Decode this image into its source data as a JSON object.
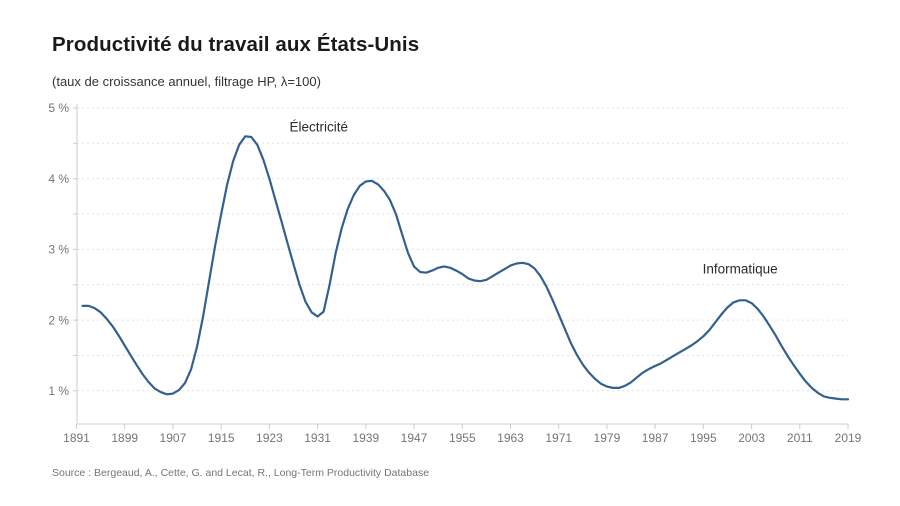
{
  "header": {
    "title": "Productivité du travail aux États-Unis",
    "subtitle": "(taux de croissance annuel, filtrage HP, λ=100)"
  },
  "footer": {
    "source": "Source : Bergeaud, A., Cette, G. and Lecat, R., Long-Term Productivity Database"
  },
  "colors": {
    "line": "#33618e",
    "grid": "#e2e2e2",
    "axis": "#cccccc",
    "tick_text": "#757575",
    "title_text": "#1a1a1a",
    "subtitle_text": "#333333",
    "source_text": "#757575",
    "annotation_text": "#2b2b2b",
    "background": "#ffffff"
  },
  "chart_data": {
    "type": "line",
    "title": "Productivité du travail aux États-Unis",
    "subtitle": "(taux de croissance annuel, filtrage HP, λ=100)",
    "unit": "%",
    "xlabel": "",
    "ylabel": "",
    "xlim": [
      1891,
      2019
    ],
    "ylim": [
      0.53,
      5.0
    ],
    "xticks": [
      1891,
      1899,
      1907,
      1915,
      1923,
      1931,
      1939,
      1947,
      1955,
      1963,
      1971,
      1979,
      1987,
      1995,
      2003,
      2011,
      2019
    ],
    "yticks": [
      {
        "value": 5,
        "label": "5 %"
      },
      {
        "value": 4,
        "label": "4 %"
      },
      {
        "value": 3,
        "label": "3 %"
      },
      {
        "value": 2,
        "label": "2 %"
      },
      {
        "value": 1,
        "label": "1 %"
      }
    ],
    "grid": {
      "orientation": "horizontal",
      "every": 0.5,
      "from": 1.0,
      "to": 5.0,
      "style": "dashed"
    },
    "legend": "none",
    "annotations": [
      {
        "text": "Électricité",
        "year": 1931.2,
        "value": 4.67
      },
      {
        "text": "Informatique",
        "year": 2001.1,
        "value": 2.66
      }
    ],
    "series": [
      {
        "name": "Productivité du travail, États-Unis (taux de croissance annuel, filtrage HP λ=100)",
        "years": [
          1892,
          1893,
          1894,
          1895,
          1896,
          1897,
          1898,
          1899,
          1900,
          1901,
          1902,
          1903,
          1904,
          1905,
          1906,
          1907,
          1908,
          1909,
          1910,
          1911,
          1912,
          1913,
          1914,
          1915,
          1916,
          1917,
          1918,
          1919,
          1920,
          1921,
          1922,
          1923,
          1924,
          1925,
          1926,
          1927,
          1928,
          1929,
          1930,
          1931,
          1932,
          1933,
          1934,
          1935,
          1936,
          1937,
          1938,
          1939,
          1940,
          1941,
          1942,
          1943,
          1944,
          1945,
          1946,
          1947,
          1948,
          1949,
          1950,
          1951,
          1952,
          1953,
          1954,
          1955,
          1956,
          1957,
          1958,
          1959,
          1960,
          1961,
          1962,
          1963,
          1964,
          1965,
          1966,
          1967,
          1968,
          1969,
          1970,
          1971,
          1972,
          1973,
          1974,
          1975,
          1976,
          1977,
          1978,
          1979,
          1980,
          1981,
          1982,
          1983,
          1984,
          1985,
          1986,
          1987,
          1988,
          1989,
          1990,
          1991,
          1992,
          1993,
          1994,
          1995,
          1996,
          1997,
          1998,
          1999,
          2000,
          2001,
          2002,
          2003,
          2004,
          2005,
          2006,
          2007,
          2008,
          2009,
          2010,
          2011,
          2012,
          2013,
          2014,
          2015,
          2016,
          2017,
          2018,
          2019
        ],
        "values": [
          2.2,
          2.2,
          2.17,
          2.11,
          2.02,
          1.91,
          1.78,
          1.64,
          1.5,
          1.36,
          1.23,
          1.12,
          1.03,
          0.98,
          0.95,
          0.96,
          1.01,
          1.11,
          1.3,
          1.62,
          2.05,
          2.55,
          3.05,
          3.5,
          3.92,
          4.25,
          4.48,
          4.6,
          4.59,
          4.48,
          4.27,
          4.0,
          3.7,
          3.4,
          3.09,
          2.79,
          2.5,
          2.26,
          2.11,
          2.05,
          2.12,
          2.5,
          2.95,
          3.3,
          3.57,
          3.77,
          3.9,
          3.96,
          3.97,
          3.92,
          3.83,
          3.7,
          3.5,
          3.22,
          2.95,
          2.76,
          2.68,
          2.67,
          2.7,
          2.74,
          2.76,
          2.74,
          2.7,
          2.65,
          2.59,
          2.56,
          2.55,
          2.57,
          2.62,
          2.67,
          2.72,
          2.77,
          2.8,
          2.81,
          2.79,
          2.73,
          2.62,
          2.47,
          2.28,
          2.08,
          1.88,
          1.68,
          1.51,
          1.37,
          1.26,
          1.17,
          1.1,
          1.06,
          1.04,
          1.04,
          1.07,
          1.12,
          1.19,
          1.26,
          1.31,
          1.35,
          1.39,
          1.44,
          1.49,
          1.54,
          1.59,
          1.64,
          1.7,
          1.77,
          1.86,
          1.97,
          2.08,
          2.18,
          2.25,
          2.28,
          2.28,
          2.24,
          2.16,
          2.05,
          1.92,
          1.78,
          1.63,
          1.49,
          1.36,
          1.24,
          1.13,
          1.04,
          0.97,
          0.92,
          0.9,
          0.89,
          0.88,
          0.88
        ]
      }
    ]
  }
}
